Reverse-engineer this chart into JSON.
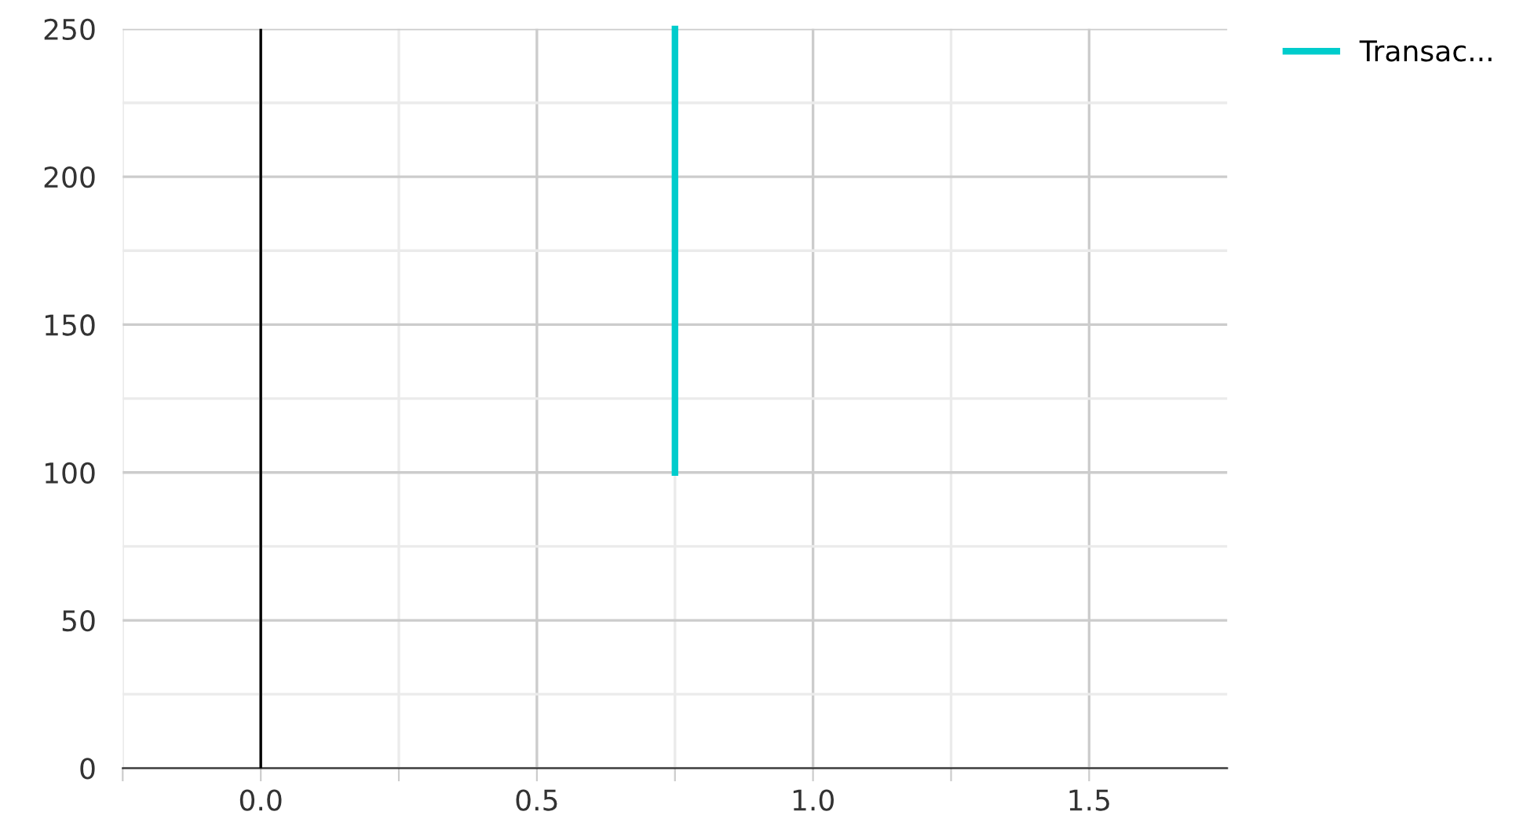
{
  "chart_data": {
    "type": "line",
    "series": [
      {
        "name": "Transac...",
        "color": "#00cccc",
        "x": [
          0.75,
          0.75
        ],
        "values": [
          100,
          250
        ]
      }
    ],
    "xlim": [
      -0.25,
      1.75
    ],
    "xticks": [
      {
        "value": -0.25,
        "label": null
      },
      {
        "value": 0,
        "label": "0.0"
      },
      {
        "value": 0.25,
        "label": null
      },
      {
        "value": 0.5,
        "label": "0.5"
      },
      {
        "value": 0.75,
        "label": null
      },
      {
        "value": 1,
        "label": "1.0"
      },
      {
        "value": 1.25,
        "label": null
      },
      {
        "value": 1.5,
        "label": "1.5"
      }
    ],
    "ylim": [
      0,
      250
    ],
    "yticks": [
      0,
      {
        "value": 25,
        "label": null
      },
      50,
      {
        "value": 75,
        "label": null
      },
      100,
      {
        "value": 125,
        "label": null
      },
      150,
      {
        "value": 175,
        "label": null
      },
      200,
      {
        "value": 225,
        "label": null
      },
      250
    ],
    "ref_lines": [
      {
        "axis": "x",
        "value": 0,
        "color": "#000000"
      }
    ],
    "grid": true,
    "legend": "top right",
    "marker": "none",
    "line_style": "solid"
  }
}
